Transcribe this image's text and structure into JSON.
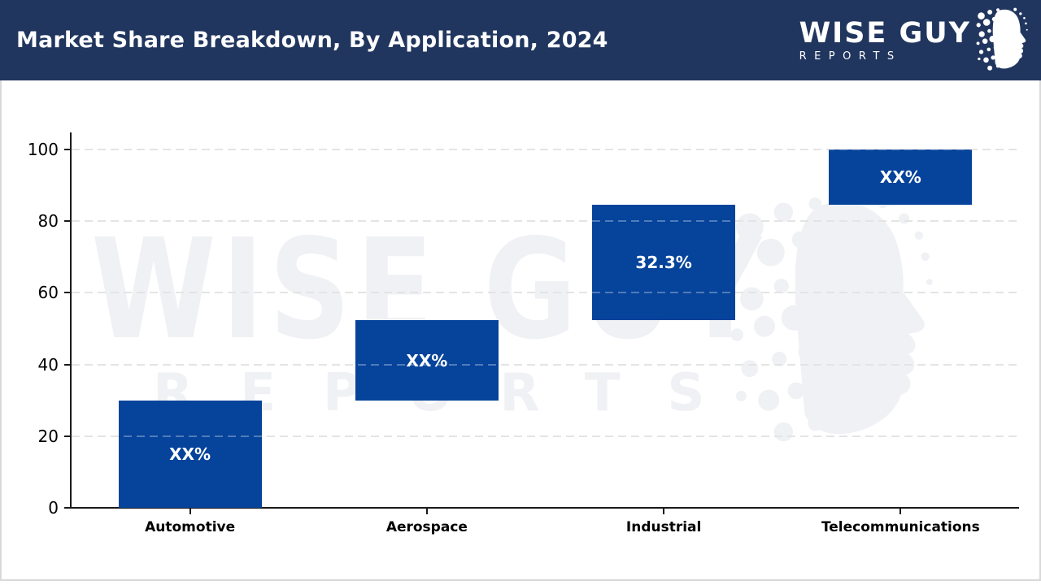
{
  "header": {
    "title": "Market Share Breakdown, By Application, 2024",
    "logo": {
      "name": "WISE GUY",
      "sub": "REPORTS"
    }
  },
  "watermark": {
    "name": "WISE GUY",
    "sub": "REPORTS"
  },
  "chart_data": {
    "type": "bar",
    "subtype": "floating-segment-waterfall",
    "title": "Market Share Breakdown, By Application, 2024",
    "categories": [
      "Automotive",
      "Aerospace",
      "Industrial",
      "Telecommunications"
    ],
    "segments": [
      {
        "category": "Automotive",
        "start": 0,
        "end": 30,
        "label": "XX%"
      },
      {
        "category": "Aerospace",
        "start": 30,
        "end": 52.3,
        "label": "XX%"
      },
      {
        "category": "Industrial",
        "start": 52.3,
        "end": 84.6,
        "label": "32.3%"
      },
      {
        "category": "Telecommunications",
        "start": 84.6,
        "end": 100,
        "label": "XX%"
      }
    ],
    "xlabel": "",
    "ylabel": "",
    "ylim": [
      0,
      100
    ],
    "yticks": [
      0,
      20,
      40,
      60,
      80,
      100
    ],
    "grid": {
      "horizontal": true,
      "style": "dashed",
      "color": "#d8d8d8"
    },
    "legend": null,
    "colors": {
      "bar": "#06439b",
      "bar_label": "#ffffff",
      "axis": "#1a1a1a",
      "tick_label": "#000000"
    }
  },
  "colors": {
    "header_bg": "#20365f",
    "header_text": "#ffffff",
    "watermark": "#f0f1f4",
    "border": "#d9d9d9",
    "page_bg": "#ffffff"
  }
}
